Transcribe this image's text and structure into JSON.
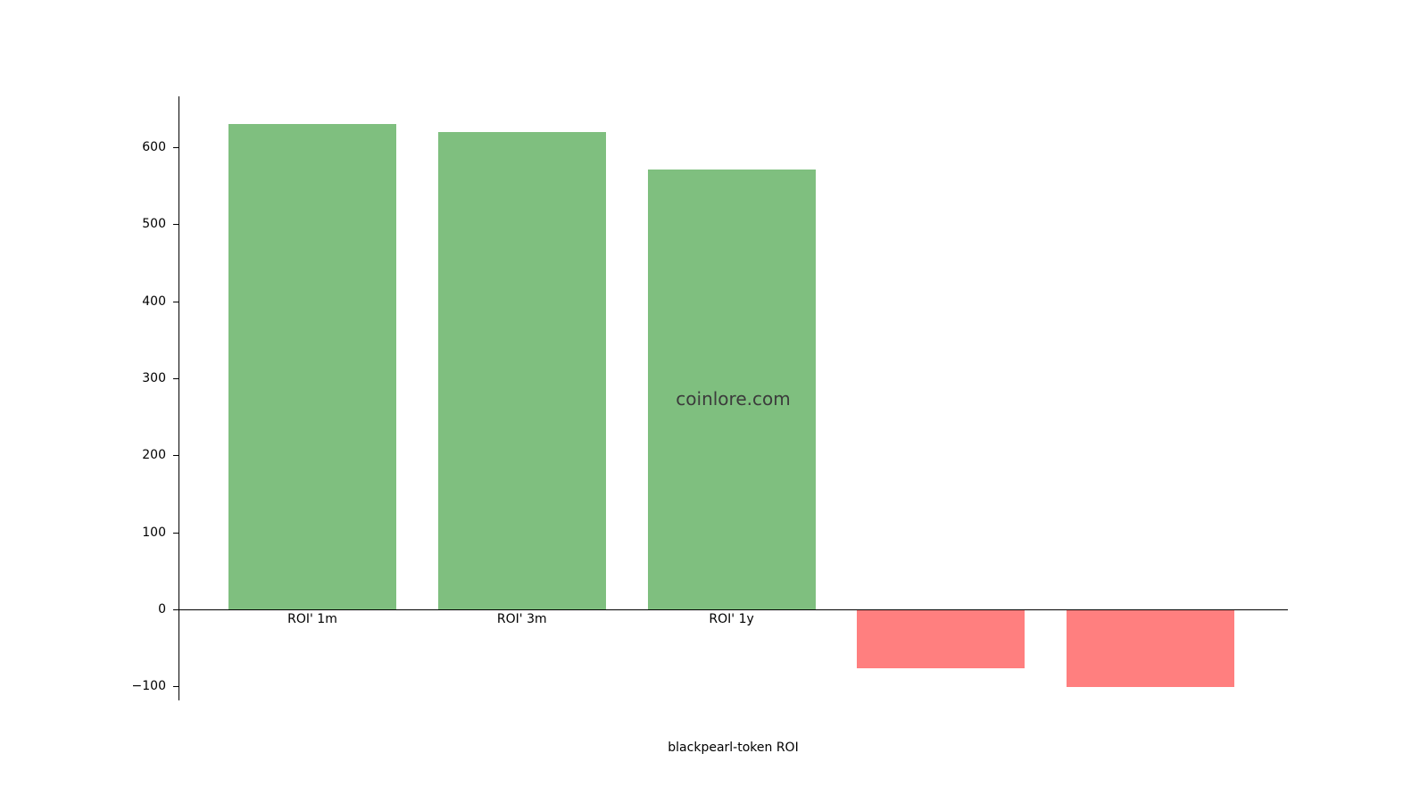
{
  "page": {
    "background_color": "#ffffff"
  },
  "watermark": {
    "text": "coinlore.com",
    "color": "#3b3b3b"
  },
  "chart_data": {
    "type": "bar",
    "title": "blackpearl-token ROI",
    "title_position": "bottom",
    "categories": [
      "ROI' 1m",
      "ROI' 3m",
      "ROI' 1y",
      "",
      ""
    ],
    "values": [
      630,
      620,
      571,
      -75,
      -100
    ],
    "bar_colors": [
      "#7fbf7f",
      "#7fbf7f",
      "#7fbf7f",
      "#ff7f7f",
      "#ff7f7f"
    ],
    "positive_color": "#7fbf7f",
    "negative_color": "#ff7f7f",
    "yticks": [
      -100,
      0,
      100,
      200,
      300,
      400,
      500,
      600
    ],
    "ylim": [
      -118,
      666
    ],
    "axis_color": "#000000",
    "grid": false,
    "legend": null,
    "watermark": "coinlore.com",
    "xlabel": "",
    "ylabel": ""
  }
}
